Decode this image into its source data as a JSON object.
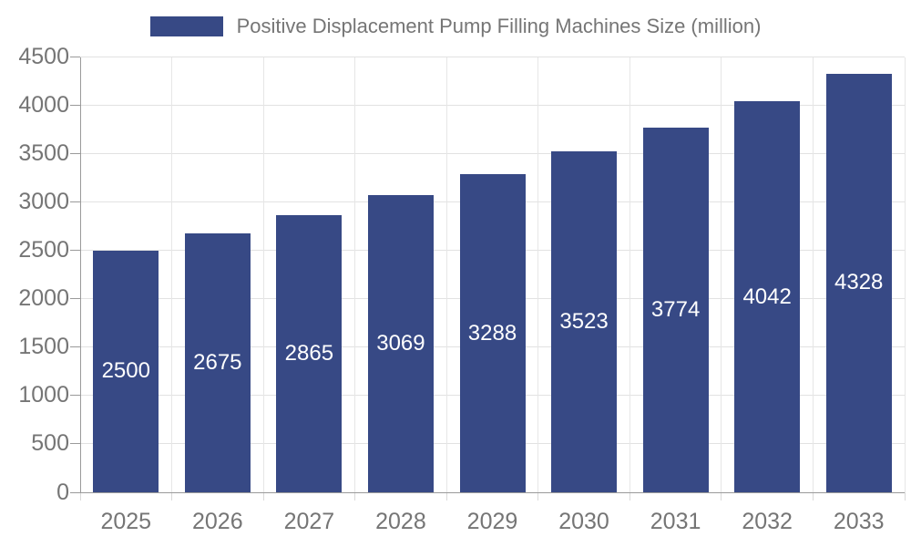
{
  "chart_data": {
    "type": "bar",
    "title": "Positive Displacement Pump Filling Machines Size (million)",
    "legend_label": "Positive Displacement Pump Filling Machines Size (million)",
    "categories": [
      "2025",
      "2026",
      "2027",
      "2028",
      "2029",
      "2030",
      "2031",
      "2032",
      "2033"
    ],
    "values": [
      2500,
      2675,
      2865,
      3069,
      3288,
      3523,
      3774,
      4042,
      4328
    ],
    "xlabel": "",
    "ylabel": "",
    "ylim": [
      0,
      4500
    ],
    "ytick_step": 500,
    "ytick_labels": [
      "0",
      "500",
      "1000",
      "1500",
      "2000",
      "2500",
      "3000",
      "3500",
      "4000",
      "4500"
    ],
    "grid": true,
    "legend_position": "top-center",
    "value_labels": "inside-center-white",
    "colors": {
      "bar": "#374985",
      "value_text": "#ffffff",
      "axis_text": "#757575",
      "grid": "#e2e2e2",
      "axis_line": "#9a9a9a",
      "background": "#ffffff"
    }
  }
}
